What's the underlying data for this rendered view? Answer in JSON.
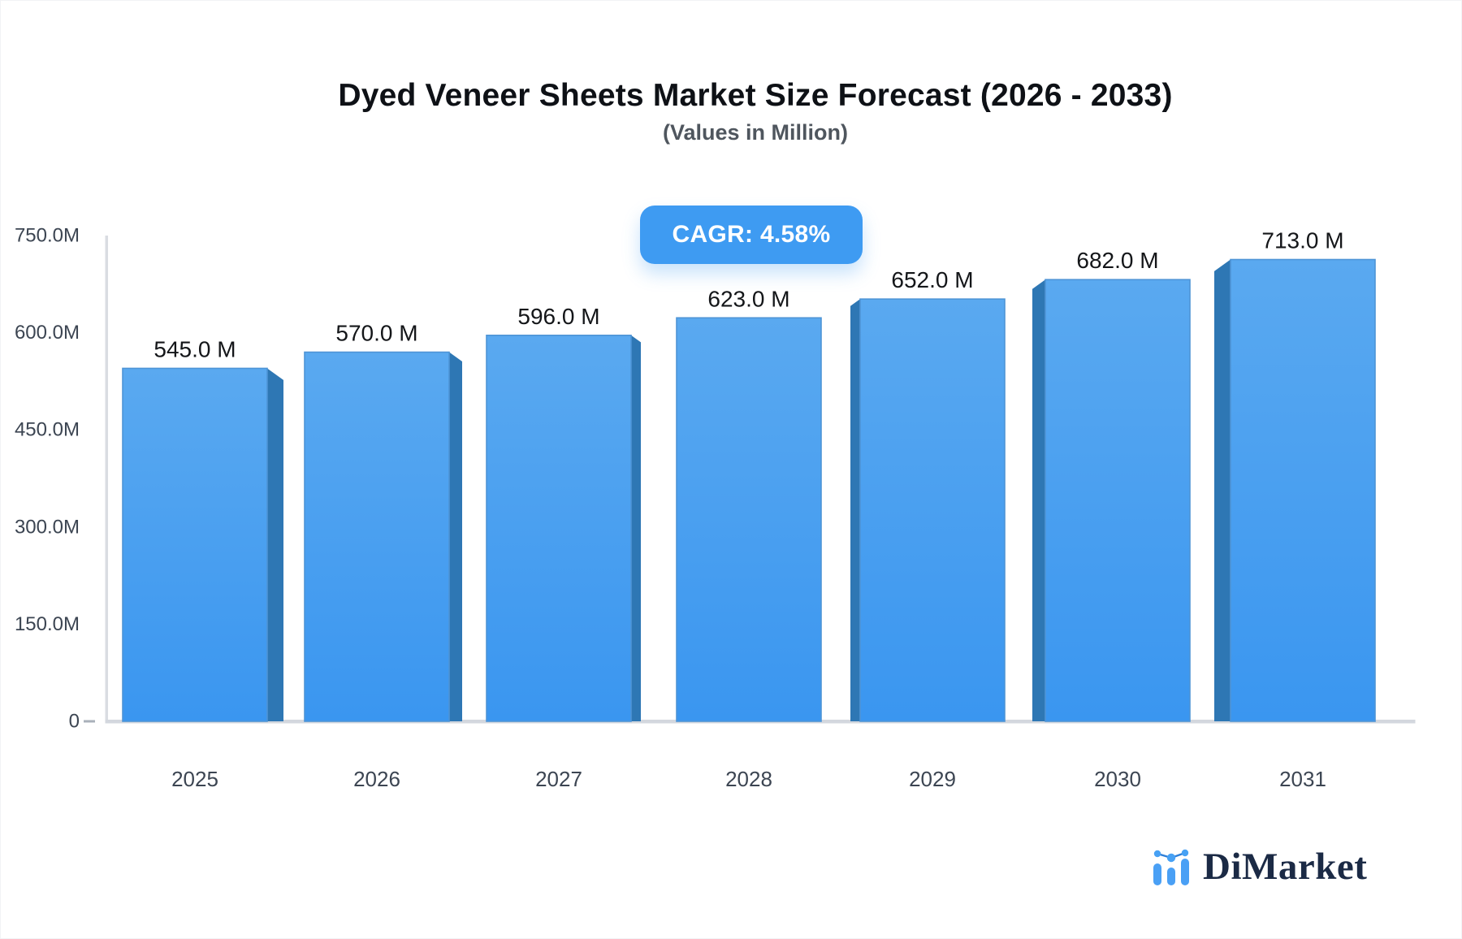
{
  "title": "Dyed Veneer Sheets Market Size Forecast (2026 - 2033)",
  "subtitle": "(Values in Million)",
  "badge": {
    "label": "CAGR: 4.58%"
  },
  "watermark": {
    "brand": "DiMarket",
    "icon": "dimarket-bar-chart-icon"
  },
  "colors": {
    "bar_face_top": "#5aa9f0",
    "bar_face_bottom": "#3a96f0",
    "bar_face_stroke": "#4e94d6",
    "bar_side": "#2e77b4",
    "axis_line": "#d9dce2",
    "baseline": "#d3d7de",
    "zero_tick": "#aab0ba",
    "axis_label": "#3c4552",
    "value_label": "#141619",
    "badge_blue": "#3e9bf2",
    "logo_blue": "#4aa0f5",
    "logo_line_blue": "#2e7fd8",
    "logo_navy": "#1b2a45"
  },
  "chart_data": {
    "type": "bar",
    "title": "Dyed Veneer Sheets Market Size Forecast (2026 - 2033)",
    "subtitle": "(Values in Million)",
    "categories": [
      "2025",
      "2026",
      "2027",
      "2028",
      "2029",
      "2030",
      "2031"
    ],
    "values": [
      545,
      570,
      596,
      623,
      652,
      682,
      713
    ],
    "value_labels": [
      "545.0 M",
      "570.0 M",
      "596.0 M",
      "623.0 M",
      "652.0 M",
      "682.0 M",
      "713.0 M"
    ],
    "unit": "Million",
    "y_ticks": [
      {
        "label": "750.0M",
        "value": 750
      },
      {
        "label": "600.0M",
        "value": 600
      },
      {
        "label": "450.0M",
        "value": 450
      },
      {
        "label": "300.0M",
        "value": 300
      },
      {
        "label": "150.0M",
        "value": 150
      },
      {
        "label": "0",
        "value": 0
      }
    ],
    "ylim": [
      0,
      750
    ],
    "grid": false,
    "legend": false,
    "style": "3d-perspective-bars",
    "annotation": "CAGR: 4.58%"
  }
}
